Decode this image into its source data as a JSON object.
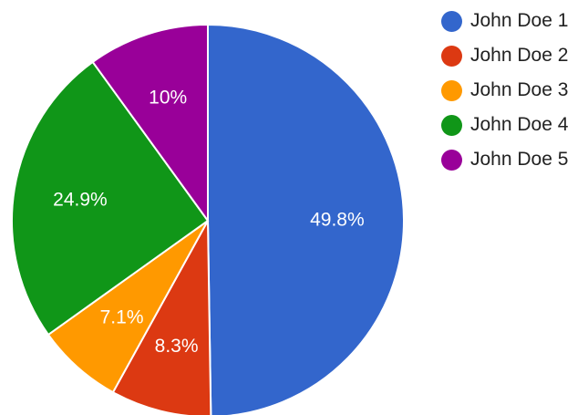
{
  "chart_data": {
    "type": "pie",
    "series": [
      {
        "name": "John Doe 1",
        "value": 49.8,
        "label": "49.8%",
        "color": "#3366cc"
      },
      {
        "name": "John Doe 2",
        "value": 8.3,
        "label": "8.3%",
        "color": "#dc3912"
      },
      {
        "name": "John Doe 3",
        "value": 7.1,
        "label": "7.1%",
        "color": "#ff9900"
      },
      {
        "name": "John Doe 4",
        "value": 24.9,
        "label": "24.9%",
        "color": "#109618"
      },
      {
        "name": "John Doe 5",
        "value": 10,
        "label": "10%",
        "color": "#990099"
      }
    ],
    "legend_position": "top-right",
    "start_angle": "top, clockwise"
  }
}
